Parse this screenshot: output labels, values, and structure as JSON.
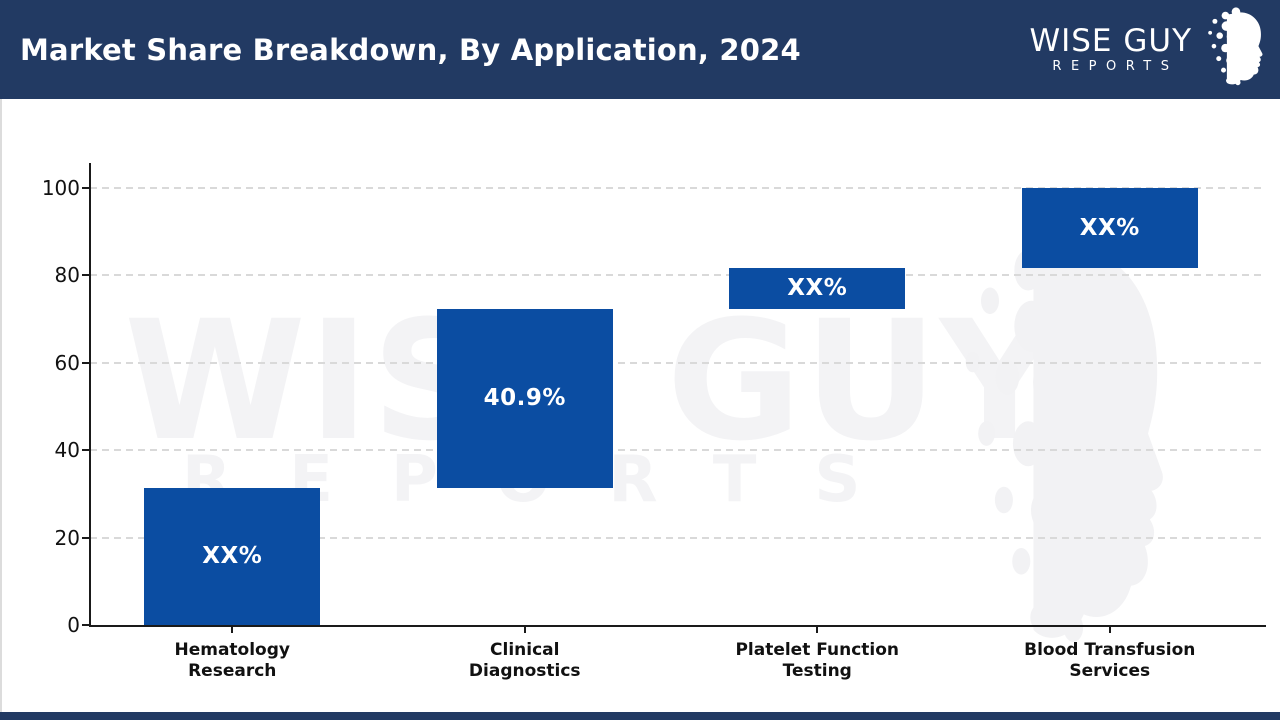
{
  "header": {
    "title": "Market Share Breakdown, By Application, 2024",
    "logo": {
      "name": "WISE GUY",
      "sub": "REPORTS"
    }
  },
  "watermark": {
    "name": "WISE GUY",
    "sub": "REPORTS"
  },
  "chart_data": {
    "type": "bar",
    "variant": "waterfall",
    "title": "Market Share Breakdown, By Application, 2024",
    "categories": [
      [
        "Hematology",
        "Research"
      ],
      [
        "Clinical",
        "Diagnostics"
      ],
      [
        "Platelet Function",
        "Testing"
      ],
      [
        "Blood Transfusion",
        "Services"
      ]
    ],
    "segments": [
      {
        "category": "Hematology Research",
        "start": 0,
        "end": 31.4,
        "value": 31.4,
        "label": "XX%"
      },
      {
        "category": "Clinical Diagnostics",
        "start": 31.4,
        "end": 72.3,
        "value": 40.9,
        "label": "40.9%"
      },
      {
        "category": "Platelet Function Testing",
        "start": 72.3,
        "end": 81.8,
        "value": 9.5,
        "label": "XX%"
      },
      {
        "category": "Blood Transfusion Services",
        "start": 81.8,
        "end": 100,
        "value": 18.2,
        "label": "XX%"
      }
    ],
    "ylim": [
      0,
      105
    ],
    "yticks": [
      0,
      20,
      40,
      60,
      80,
      100
    ],
    "xlabel": "",
    "ylabel": "",
    "legend": "none",
    "grid": {
      "axis": "y",
      "style": "dashed",
      "color": "#d9d9d9"
    },
    "bar_color": "#0b4da2",
    "bar_label_color": "#ffffff",
    "axis_color": "#1a1a1a",
    "header_color": "#223a63",
    "watermark_color": "#f3f3f5"
  }
}
